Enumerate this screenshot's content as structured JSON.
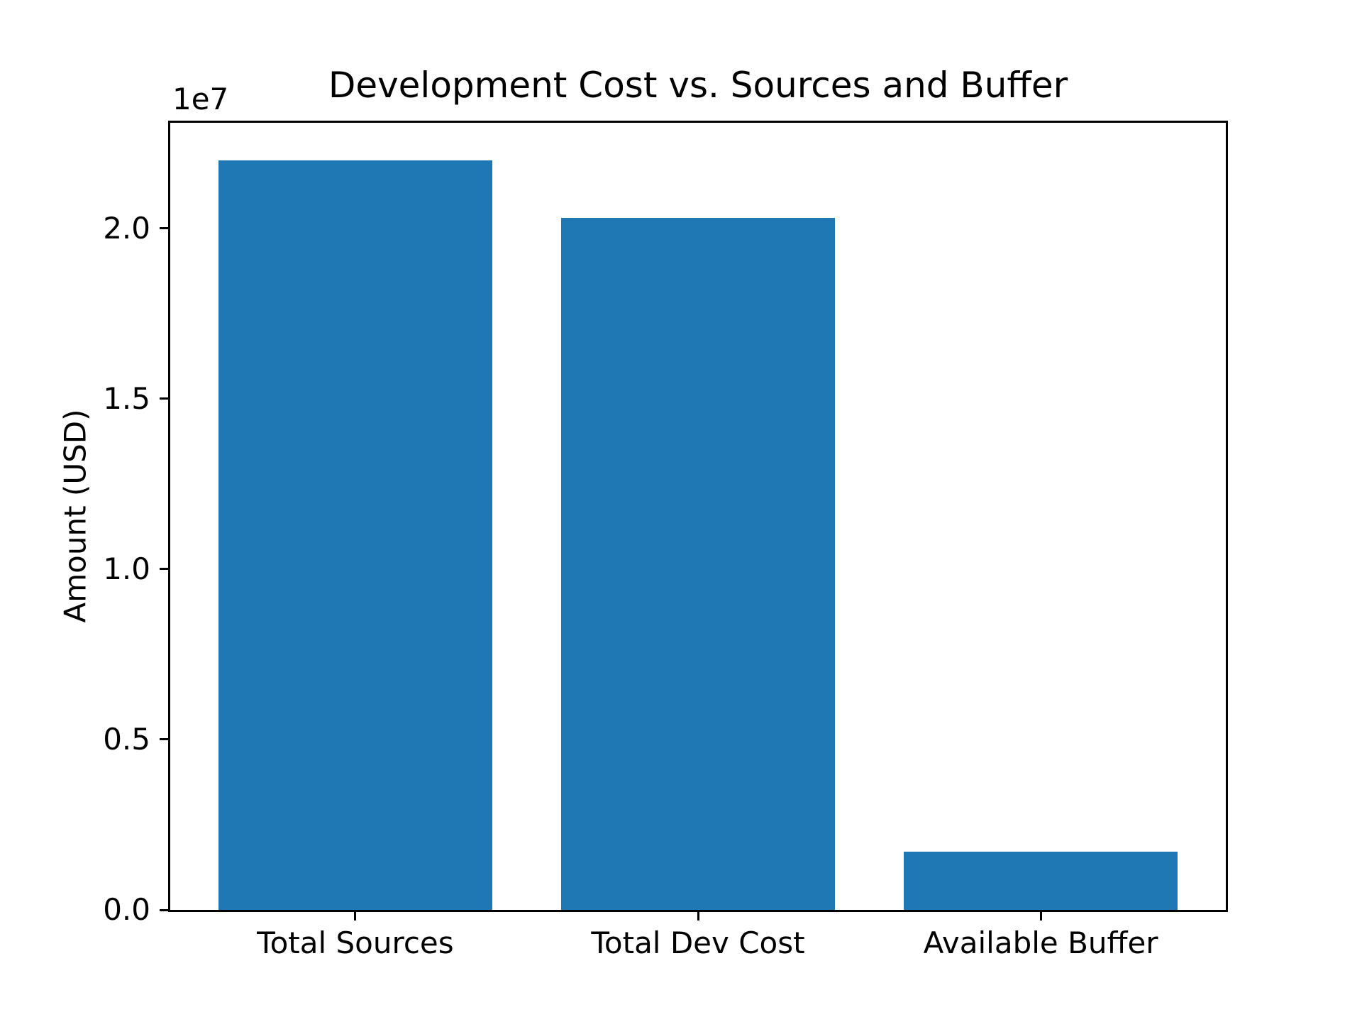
{
  "figure": {
    "background_color": "#ffffff",
    "text_color": "#000000"
  },
  "chart_data": {
    "type": "bar",
    "title": "Development Cost vs. Sources and Buffer",
    "xlabel": "",
    "ylabel": "Amount (USD)",
    "y_offset_label": "1e7",
    "categories": [
      "Total Sources",
      "Total Dev Cost",
      "Available Buffer"
    ],
    "values": [
      22000000,
      20300000,
      1700000
    ],
    "bar_color": "#1f77b4",
    "bar_width_units": 0.8,
    "xlim": [
      -0.54,
      2.54
    ],
    "ylim": [
      0,
      23100000
    ],
    "ytick_values": [
      0,
      5000000,
      10000000,
      15000000,
      20000000
    ],
    "ytick_labels": [
      "0.0",
      "0.5",
      "1.0",
      "1.5",
      "2.0"
    ],
    "grid": false,
    "legend_position": "none"
  }
}
